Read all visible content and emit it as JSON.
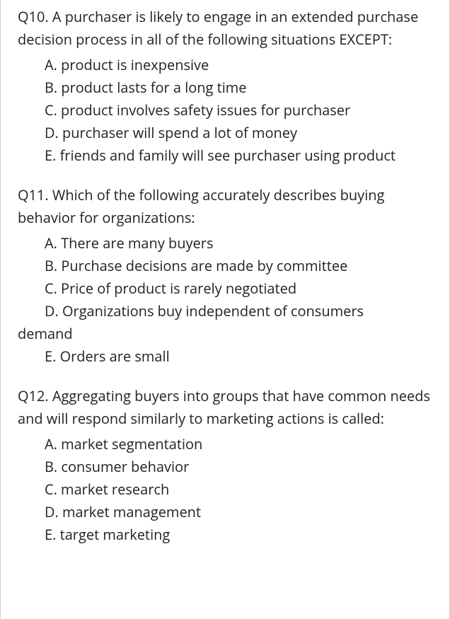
{
  "colors": {
    "text": "#222222",
    "border": "#cccccc",
    "background": "#ffffff"
  },
  "typography": {
    "font_family": "-apple-system, BlinkMacSystemFont, Segoe UI, Open Sans, Helvetica, Arial, sans-serif",
    "font_size_pt": 15,
    "line_height": 1.6
  },
  "questions": [
    {
      "id": "Q10",
      "stem": "Q10. A purchaser is likely to engage in an extended purchase decision process in all of the following situations EXCEPT:",
      "options": [
        {
          "letter": "A",
          "text": "A. product is inexpensive"
        },
        {
          "letter": "B",
          "text": "B. product lasts for a long time"
        },
        {
          "letter": "C",
          "text": "C. product involves safety issues for purchaser"
        },
        {
          "letter": "D",
          "text": "D. purchaser will spend a lot of money"
        },
        {
          "letter": "E",
          "text": "E. friends and family will see purchaser using product"
        }
      ]
    },
    {
      "id": "Q11",
      "stem": "Q11. Which of the following accurately describes buying behavior for organizations:",
      "options": [
        {
          "letter": "A",
          "text": "A. There are many buyers"
        },
        {
          "letter": "B",
          "text": "B. Purchase decisions are made by committee"
        },
        {
          "letter": "C",
          "text": "C. Price of product is rarely negotiated"
        },
        {
          "letter": "D",
          "text": "D. Organizations buy independent of consumers demand",
          "wrap": true
        },
        {
          "letter": "E",
          "text": "E. Orders are small"
        }
      ]
    },
    {
      "id": "Q12",
      "stem": "Q12. Aggregating buyers into groups that have common needs and will respond similarly to marketing actions is called:",
      "options": [
        {
          "letter": "A",
          "text": "A. market segmentation"
        },
        {
          "letter": "B",
          "text": "B. consumer behavior"
        },
        {
          "letter": "C",
          "text": "C. market research"
        },
        {
          "letter": "D",
          "text": "D. market management"
        },
        {
          "letter": "E",
          "text": "E. target marketing"
        }
      ]
    }
  ]
}
